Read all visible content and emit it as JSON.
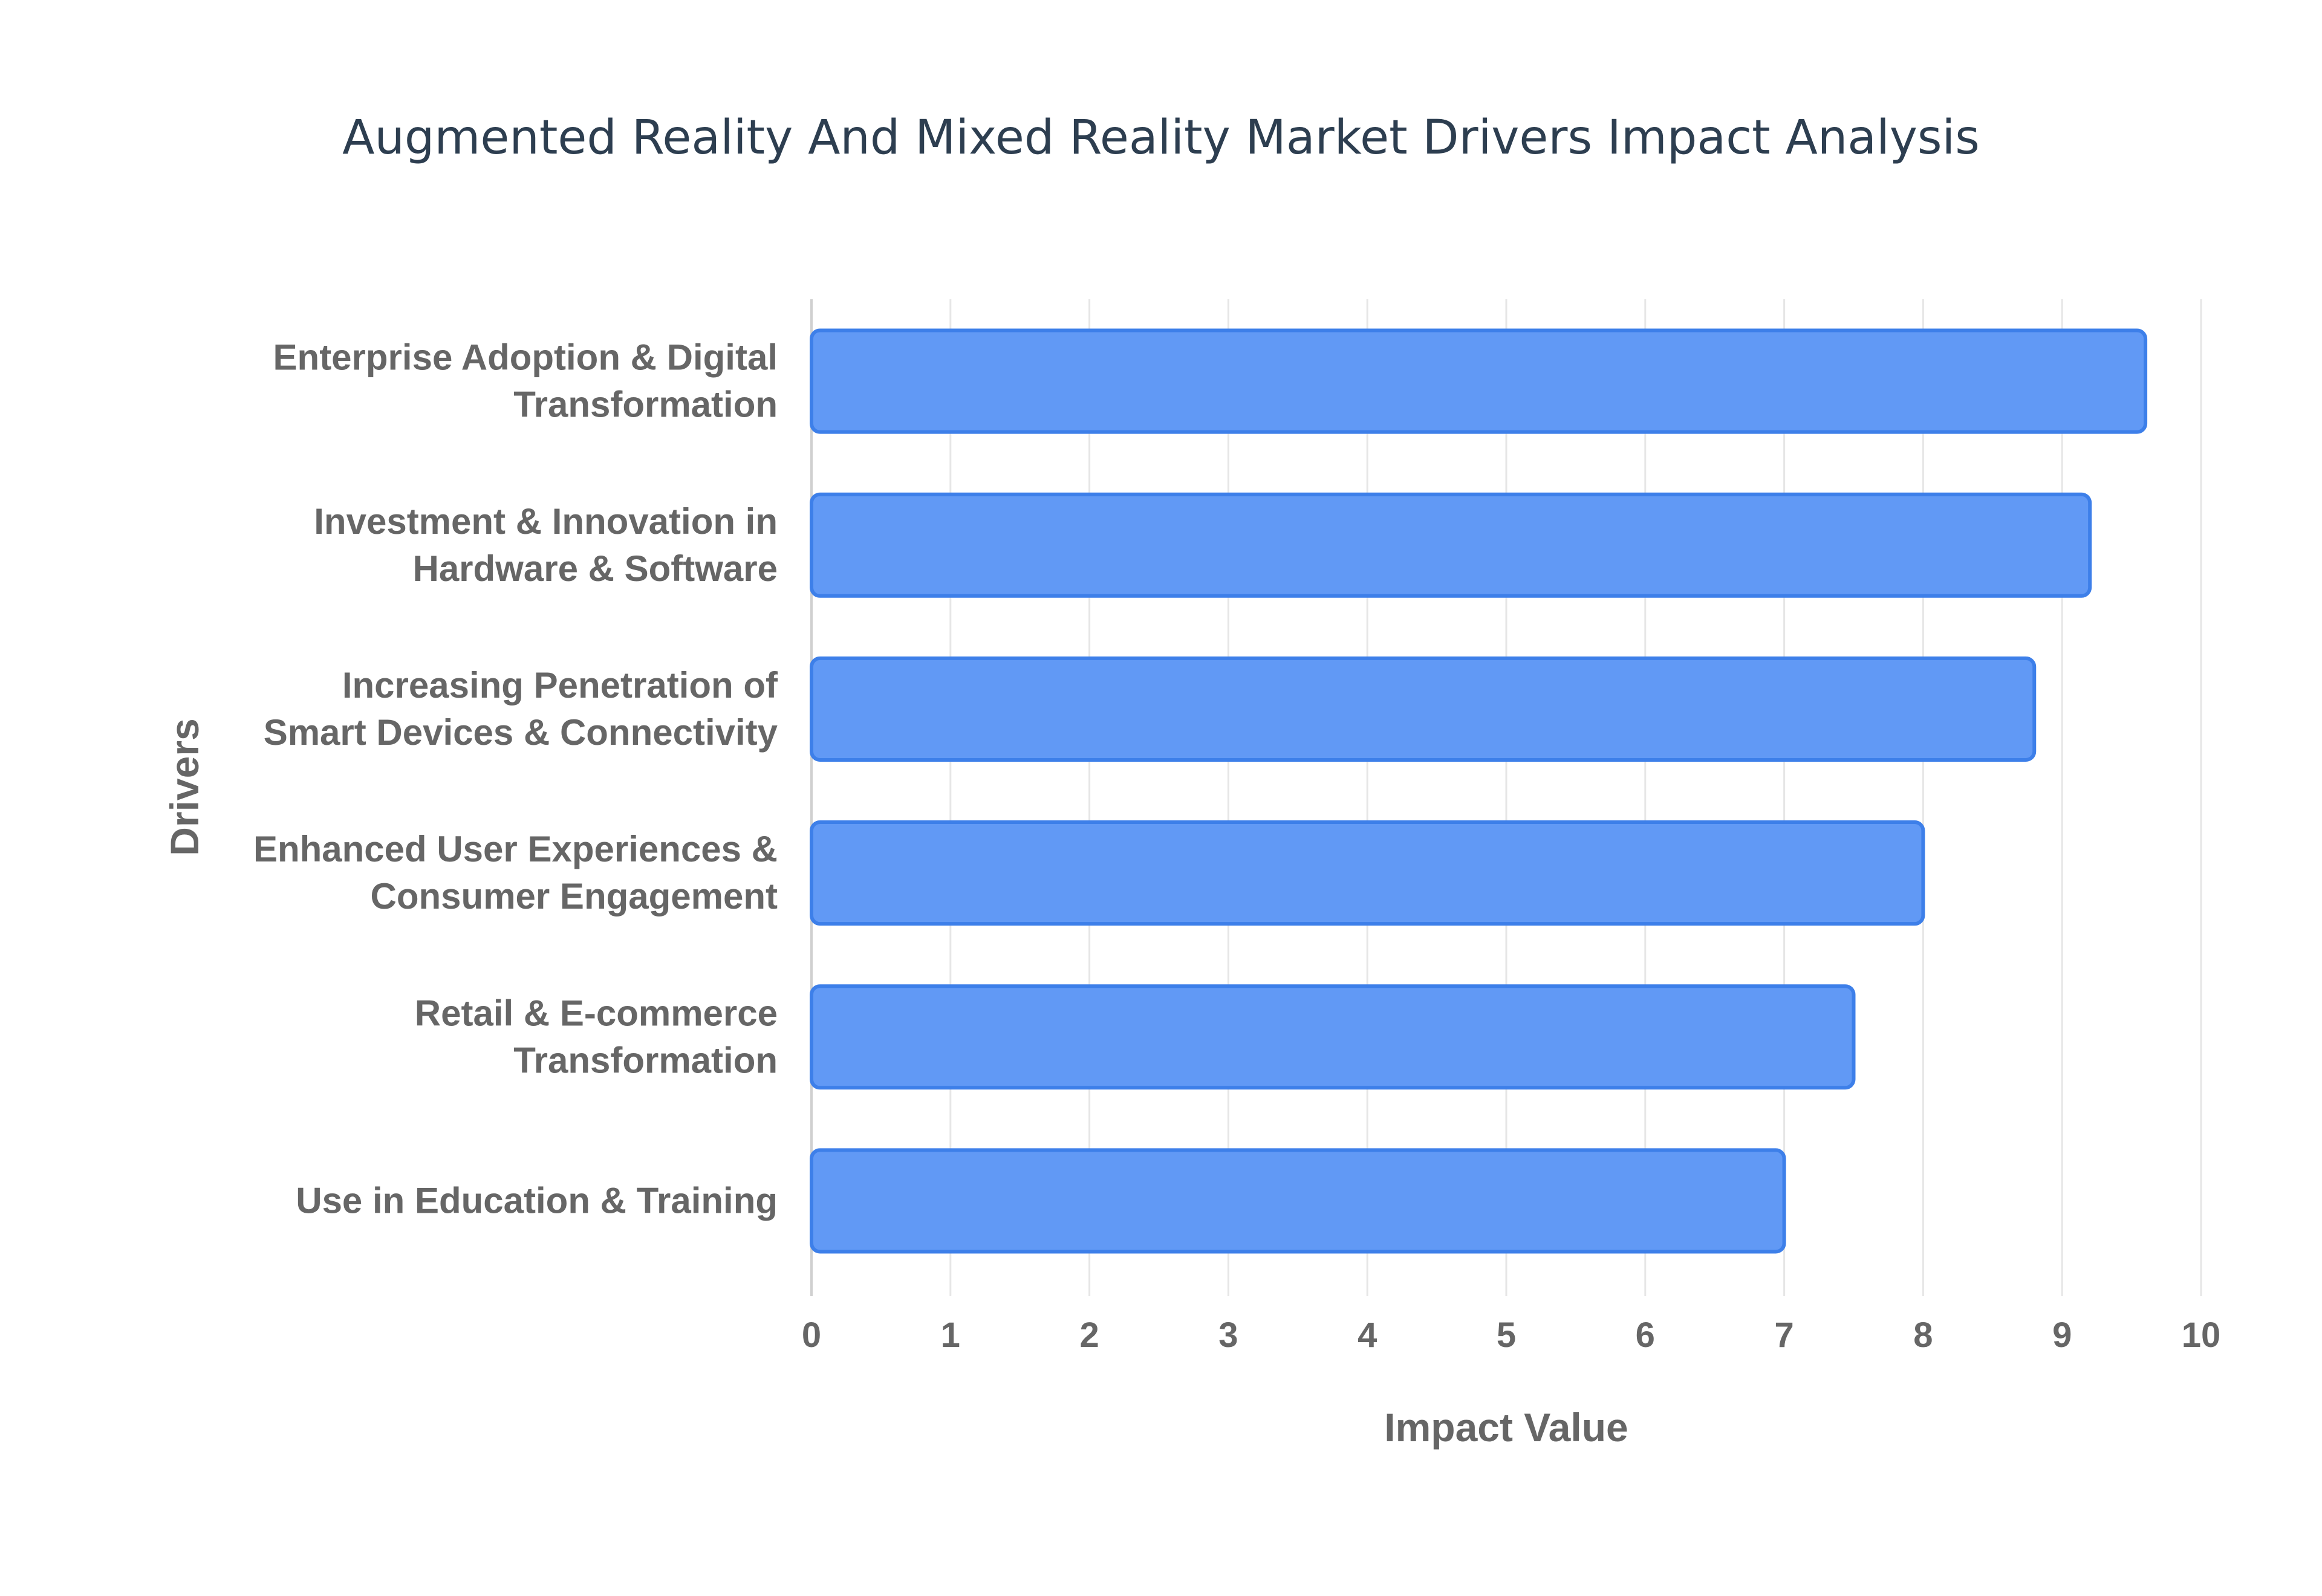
{
  "chart_data": {
    "type": "bar",
    "orientation": "horizontal",
    "title": "Augmented Reality And Mixed Reality Market Drivers Impact Analysis",
    "xlabel": "Impact Value",
    "ylabel": "Drivers",
    "xlim": [
      0,
      10
    ],
    "xticks": [
      "0",
      "1",
      "2",
      "3",
      "4",
      "5",
      "6",
      "7",
      "8",
      "9",
      "10"
    ],
    "grid": true,
    "legend": "none",
    "categories": [
      [
        "Enterprise Adoption & Digital",
        "Transformation"
      ],
      [
        "Investment & Innovation in",
        "Hardware & Software"
      ],
      [
        "Increasing Penetration of",
        "Smart Devices & Connectivity"
      ],
      [
        "Enhanced User Experiences &",
        "Consumer Engagement"
      ],
      [
        "Retail & E-commerce",
        "Transformation"
      ],
      [
        "Use in Education & Training"
      ]
    ],
    "values": [
      9.6,
      9.2,
      8.8,
      8.0,
      7.5,
      7.0
    ],
    "colors": {
      "bar_fill": "#6199f5",
      "bar_stroke": "#3d7fe9"
    }
  }
}
